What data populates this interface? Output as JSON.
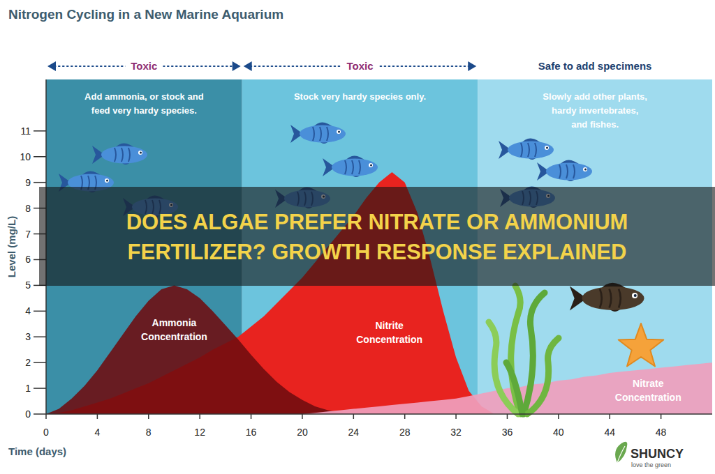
{
  "chart_data": {
    "type": "area",
    "title": "Nitrogen Cycling in a New Marine Aquarium",
    "banner": "DOES ALGAE PREFER NITRATE OR AMMONIUM FERTILIZER? GROWTH RESPONSE EXPLAINED",
    "x_label": "Time (days)",
    "y_label": "Level (mg/L)",
    "grid": false,
    "x": [
      0,
      1,
      2,
      3,
      4,
      5,
      6,
      7,
      8,
      9,
      10,
      11,
      12,
      13,
      14,
      15,
      16,
      17,
      18,
      19,
      20,
      21,
      22,
      23,
      24,
      25,
      26,
      27,
      28,
      29,
      30,
      31,
      32,
      33,
      34,
      35,
      36,
      37,
      38,
      39,
      40,
      41,
      42,
      43,
      44,
      45,
      46,
      47,
      48,
      49,
      50,
      51,
      52
    ],
    "xlim": [
      0,
      52
    ],
    "xticks": [
      0,
      4,
      8,
      12,
      16,
      20,
      24,
      28,
      32,
      36,
      40,
      44,
      48
    ],
    "ylim": [
      0,
      13
    ],
    "yticks": [
      0,
      1,
      2,
      3,
      4,
      5,
      6,
      7,
      8,
      9,
      10,
      11
    ],
    "series": [
      {
        "name": "Ammonia Concentration",
        "color": "#6e0c10",
        "values": [
          0,
          0.2,
          0.6,
          1.1,
          1.7,
          2.4,
          3.1,
          3.8,
          4.4,
          4.85,
          5.0,
          4.85,
          4.5,
          4.0,
          3.45,
          2.9,
          2.3,
          1.75,
          1.25,
          0.85,
          0.55,
          0.3,
          0.15,
          0.05,
          0,
          null,
          null,
          null,
          null,
          null,
          null,
          null,
          null,
          null,
          null,
          null,
          null,
          null,
          null,
          null,
          null,
          null,
          null,
          null,
          null,
          null,
          null,
          null,
          null,
          null,
          null,
          null,
          null
        ]
      },
      {
        "name": "Nitrite Concentration",
        "color": "#e8231f",
        "values": [
          0,
          0.05,
          0.15,
          0.3,
          0.45,
          0.6,
          0.8,
          1.0,
          1.2,
          1.45,
          1.7,
          1.95,
          2.2,
          2.5,
          2.75,
          3.0,
          3.4,
          3.8,
          4.3,
          4.8,
          5.3,
          5.9,
          6.5,
          7.1,
          7.7,
          8.4,
          9.0,
          9.4,
          9.0,
          7.8,
          6.0,
          4.0,
          2.2,
          0.9,
          0.3,
          0,
          null,
          null,
          null,
          null,
          null,
          null,
          null,
          null,
          null,
          null,
          null,
          null,
          null,
          null,
          null,
          null,
          null
        ]
      },
      {
        "name": "Nitrate Concentration",
        "color": "#ef9fbd",
        "values": [
          null,
          null,
          null,
          null,
          null,
          null,
          null,
          null,
          null,
          null,
          null,
          null,
          null,
          null,
          null,
          null,
          null,
          null,
          null,
          null,
          0,
          0.05,
          0.1,
          0.15,
          0.2,
          0.25,
          0.3,
          0.35,
          0.4,
          0.45,
          0.5,
          0.55,
          0.6,
          0.7,
          0.8,
          0.9,
          1.0,
          1.05,
          1.15,
          1.2,
          1.3,
          1.35,
          1.45,
          1.5,
          1.6,
          1.65,
          1.7,
          1.75,
          1.8,
          1.85,
          1.9,
          1.95,
          2.0
        ]
      }
    ],
    "zones": [
      {
        "start": 0,
        "end": 15.3,
        "header": "Toxic",
        "line_style": "dotted",
        "note": [
          "Add ammonia, or stock and",
          "feed very hardy species."
        ]
      },
      {
        "start": 15.3,
        "end": 33.7,
        "header": "Toxic",
        "line_style": "dotted",
        "note": [
          "Stock very hardy species only."
        ]
      },
      {
        "start": 33.7,
        "end": 52,
        "header": "Safe to add specimens",
        "note": [
          "Slowly add other plants,",
          "hardy invertebrates,",
          "and fishes."
        ]
      }
    ],
    "watermark": {
      "text": "SHUNCY",
      "tagline": "love the green"
    }
  }
}
